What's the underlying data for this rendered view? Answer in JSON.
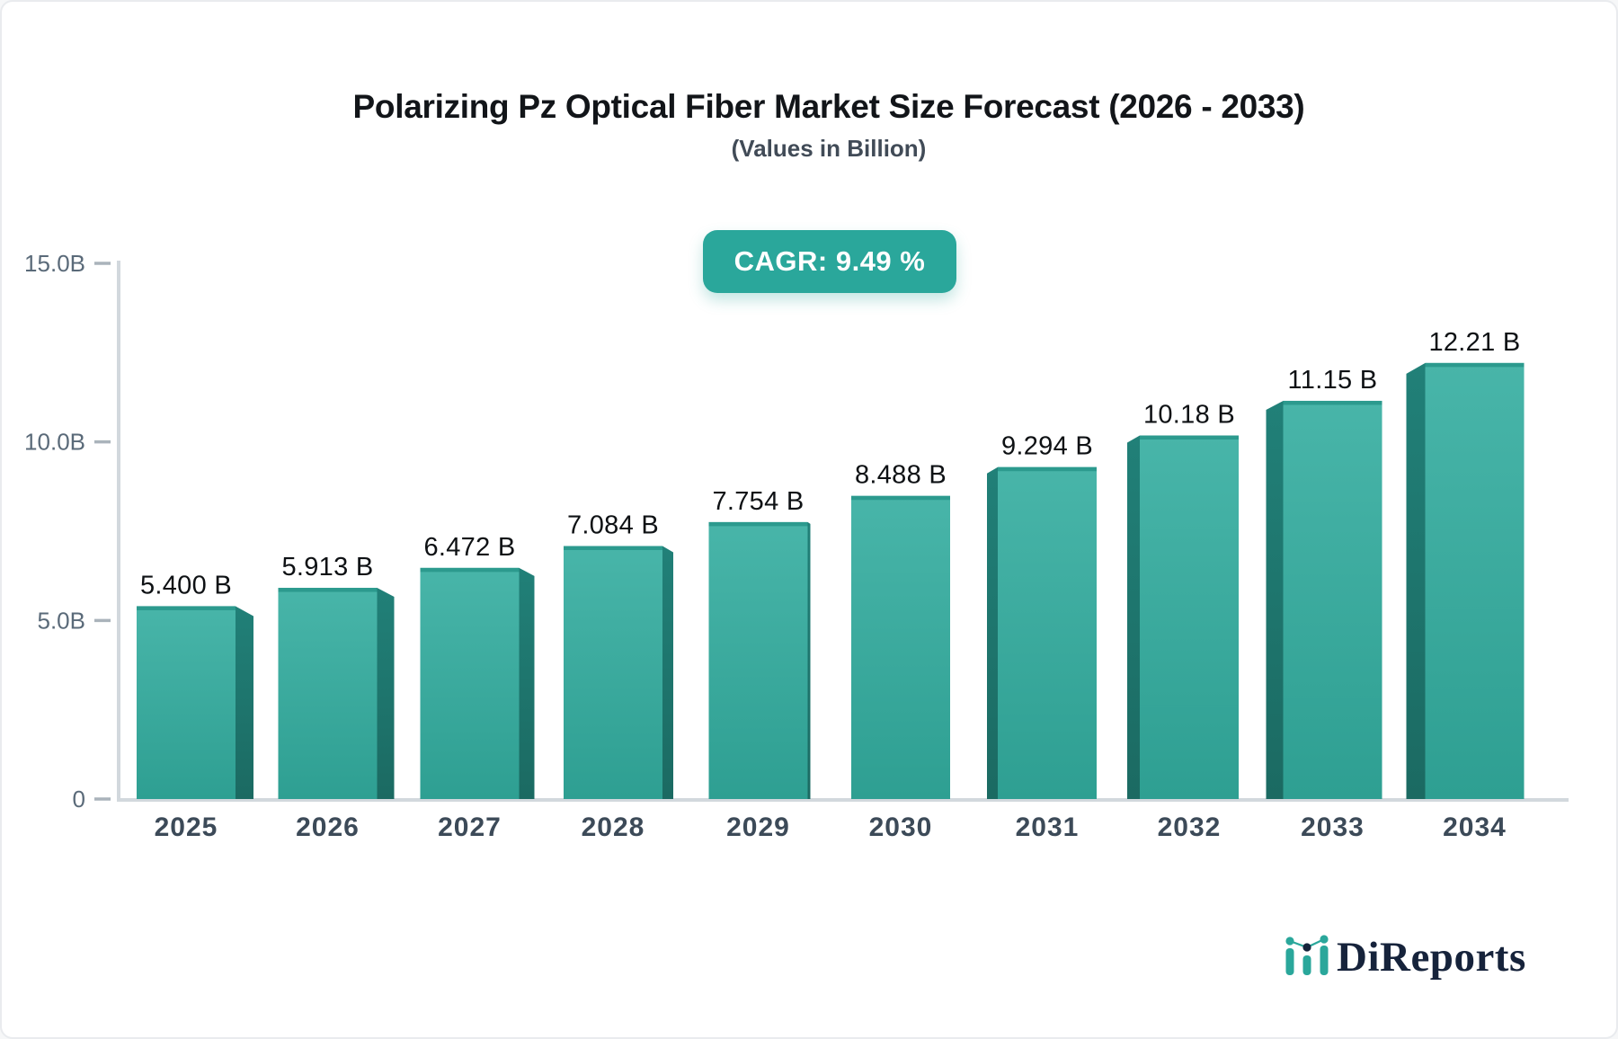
{
  "page": {
    "background": "#ffffff",
    "border_color": "#e9ebee"
  },
  "chart_data": {
    "type": "bar",
    "title": "Polarizing Pz Optical Fiber Market Size Forecast (2026 - 2033)",
    "subtitle": "(Values in Billion)",
    "cagr_badge": "CAGR: 9.49 %",
    "categories": [
      "2025",
      "2026",
      "2027",
      "2028",
      "2029",
      "2030",
      "2031",
      "2032",
      "2033",
      "2034"
    ],
    "values": [
      5.4,
      5.913,
      6.472,
      7.084,
      7.754,
      8.488,
      9.294,
      10.18,
      11.15,
      12.21
    ],
    "value_labels": [
      "5.400 B",
      "5.913 B",
      "6.472 B",
      "7.084 B",
      "7.754 B",
      "8.488 B",
      "9.294 B",
      "10.18 B",
      "11.15 B",
      "12.21 B"
    ],
    "xlabel": "",
    "ylabel": "",
    "ylim": [
      0,
      15
    ],
    "yticks": [
      {
        "value": 0,
        "label": "0"
      },
      {
        "value": 5,
        "label": "5.0B"
      },
      {
        "value": 10,
        "label": "10.0B"
      },
      {
        "value": 15,
        "label": "15.0B"
      }
    ],
    "grid": false,
    "legend": null,
    "colors": {
      "bar_face_top": "#48b5a9",
      "bar_face_bottom": "#2e9f92",
      "bar_top_edge": "#2c9a8e",
      "bar_side_top": "#218078",
      "bar_side_bottom": "#1b6a62",
      "axis_line": "#d2d8dd",
      "tick_mark": "#aab3bb",
      "tick_label": "#5a6a79",
      "year_label": "#3c4a58",
      "value_label": "#0e1114",
      "accent": "#2aa79b"
    }
  },
  "branding": {
    "logo_text": "DiReports",
    "logo_icon": "mini-bar-chart-icon",
    "logo_text_color": "#16233b",
    "logo_accent": "#2aa79b"
  }
}
